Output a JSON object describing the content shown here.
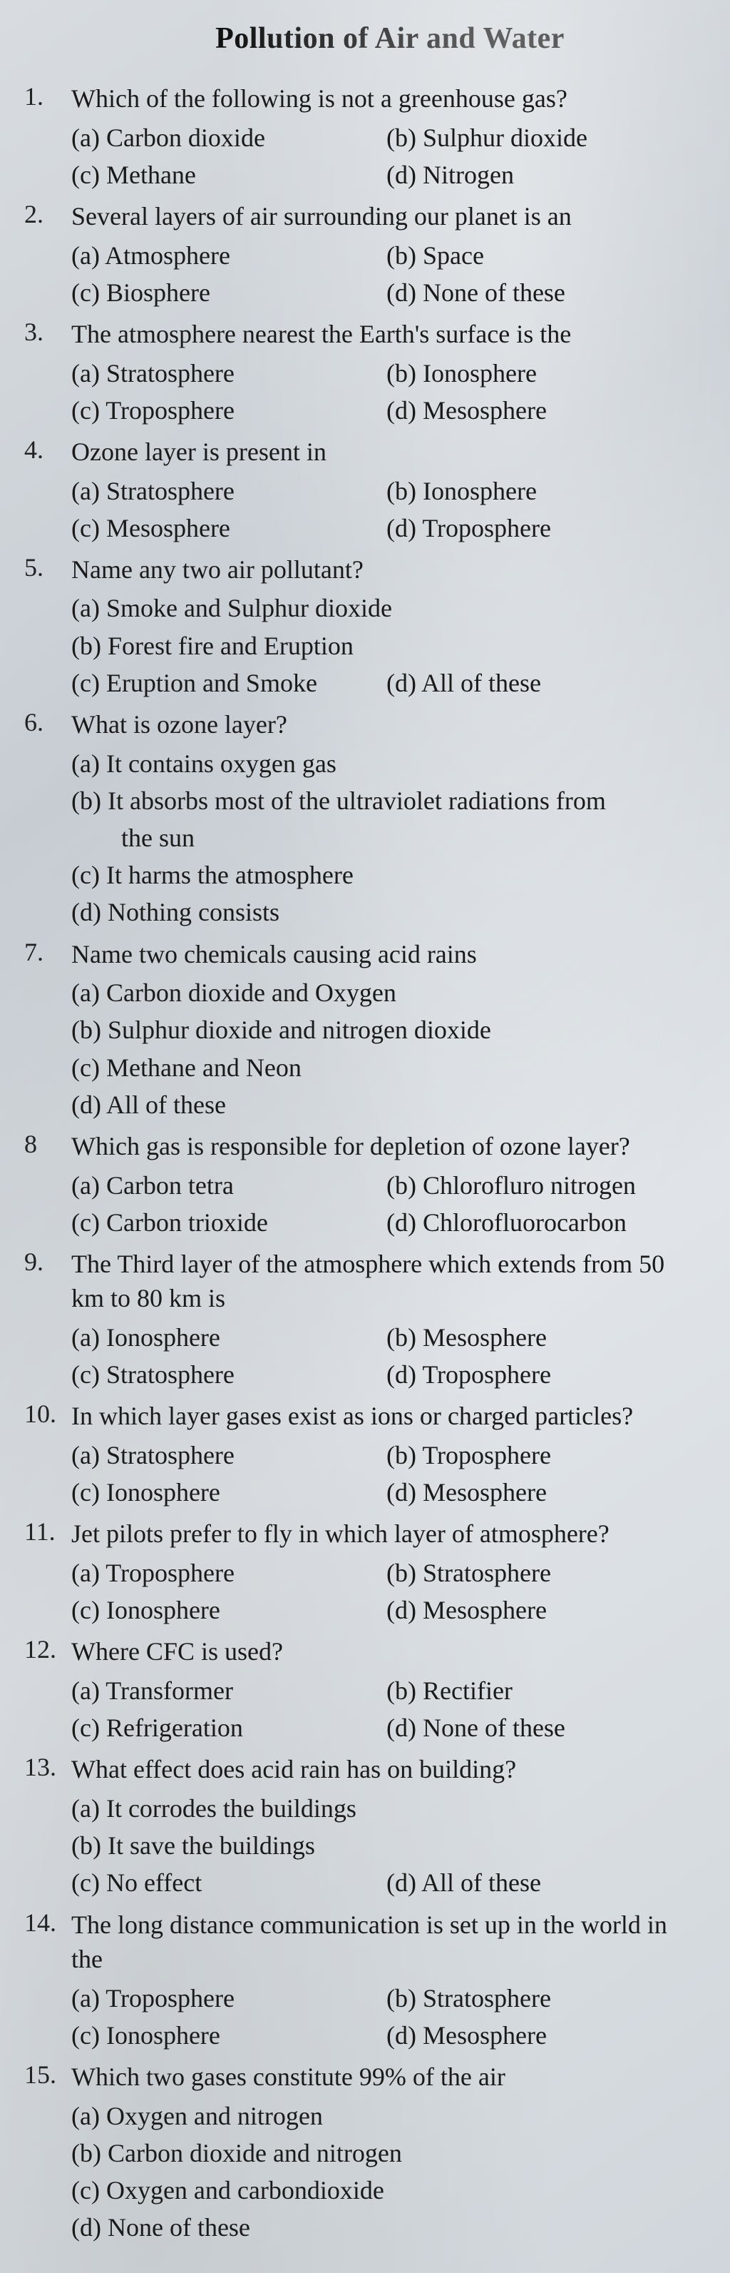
{
  "title": "Pollution of Air and Water",
  "questions": [
    {
      "num": "1.",
      "text": "Which of the following is not a greenhouse gas?",
      "opts": {
        "a": "(a) Carbon dioxide",
        "b": "(b) Sulphur dioxide",
        "c": "(c) Methane",
        "d": "(d) Nitrogen"
      },
      "layout": "two-col"
    },
    {
      "num": "2.",
      "text": "Several layers of air surrounding our planet is an",
      "opts": {
        "a": "(a) Atmosphere",
        "b": "(b) Space",
        "c": "(c) Biosphere",
        "d": "(d) None of these"
      },
      "layout": "two-col"
    },
    {
      "num": "3.",
      "text": "The atmosphere nearest the Earth's surface is the",
      "opts": {
        "a": "(a) Stratosphere",
        "b": "(b) Ionosphere",
        "c": "(c) Troposphere",
        "d": "(d) Mesosphere"
      },
      "layout": "two-col"
    },
    {
      "num": "4.",
      "text": "Ozone layer is present in",
      "opts": {
        "a": "(a) Stratosphere",
        "b": "(b) Ionosphere",
        "c": "(c) Mesosphere",
        "d": "(d) Troposphere"
      },
      "layout": "two-col"
    },
    {
      "num": "5.",
      "text": "Name any two air pollutant?",
      "opts": {
        "a": "(a) Smoke and Sulphur dioxide",
        "b": "(b) Forest fire and Eruption",
        "c": "(c) Eruption and Smoke",
        "d": "(d) All of these"
      },
      "layout": "ab-full-cd-half"
    },
    {
      "num": "6.",
      "text": "What is ozone layer?",
      "opts": {
        "a": "(a) It contains oxygen gas",
        "b": "(b) It absorbs most of the ultraviolet radiations from",
        "b2": "the sun",
        "c": "(c) It harms the atmosphere",
        "d": "(d) Nothing consists"
      },
      "layout": "all-full-bsplit"
    },
    {
      "num": "7.",
      "text": "Name two chemicals causing acid rains",
      "opts": {
        "a": "(a) Carbon dioxide and Oxygen",
        "b": "(b) Sulphur dioxide and nitrogen dioxide",
        "c": "(c) Methane and Neon",
        "d": "(d) All of these"
      },
      "layout": "all-full"
    },
    {
      "num": "8",
      "text": "Which gas is responsible for depletion of ozone layer?",
      "opts": {
        "a": "(a) Carbon tetra",
        "b": "(b) Chlorofluro nitrogen",
        "c": "(c) Carbon trioxide",
        "d": "(d) Chlorofluorocarbon"
      },
      "layout": "two-col"
    },
    {
      "num": "9.",
      "text": "The Third layer of the atmosphere which extends from 50 km to 80 km is",
      "opts": {
        "a": "(a) Ionosphere",
        "b": "(b) Mesosphere",
        "c": "(c) Stratosphere",
        "d": "(d) Troposphere"
      },
      "layout": "two-col"
    },
    {
      "num": "10.",
      "text": "In which layer gases exist as ions or charged particles?",
      "opts": {
        "a": "(a) Stratosphere",
        "b": "(b) Troposphere",
        "c": "(c) Ionosphere",
        "d": "(d) Mesosphere"
      },
      "layout": "two-col"
    },
    {
      "num": "11.",
      "text": "Jet pilots prefer to fly in which layer of atmosphere?",
      "opts": {
        "a": "(a) Troposphere",
        "b": "(b) Stratosphere",
        "c": "(c) Ionosphere",
        "d": "(d) Mesosphere"
      },
      "layout": "two-col"
    },
    {
      "num": "12.",
      "text": "Where CFC is used?",
      "opts": {
        "a": "(a) Transformer",
        "b": "(b) Rectifier",
        "c": "(c) Refrigeration",
        "d": "(d) None of these"
      },
      "layout": "two-col"
    },
    {
      "num": "13.",
      "text": "What effect does acid rain has on building?",
      "opts": {
        "a": "(a) It corrodes the buildings",
        "b": "(b) It save the buildings",
        "c": "(c) No effect",
        "d": "(d) All of these"
      },
      "layout": "ab-full-cd-half"
    },
    {
      "num": "14.",
      "text": "The long distance communication is set up in the world in the",
      "opts": {
        "a": "(a) Troposphere",
        "b": "(b) Stratosphere",
        "c": "(c) Ionosphere",
        "d": "(d) Mesosphere"
      },
      "layout": "two-col"
    },
    {
      "num": "15.",
      "text": "Which two gases constitute 99% of the air",
      "opts": {
        "a": "(a) Oxygen and nitrogen",
        "b": "(b) Carbon dioxide and nitrogen",
        "c": "(c) Oxygen and carbondioxide",
        "d": "(d) None of these"
      },
      "layout": "all-full"
    }
  ]
}
